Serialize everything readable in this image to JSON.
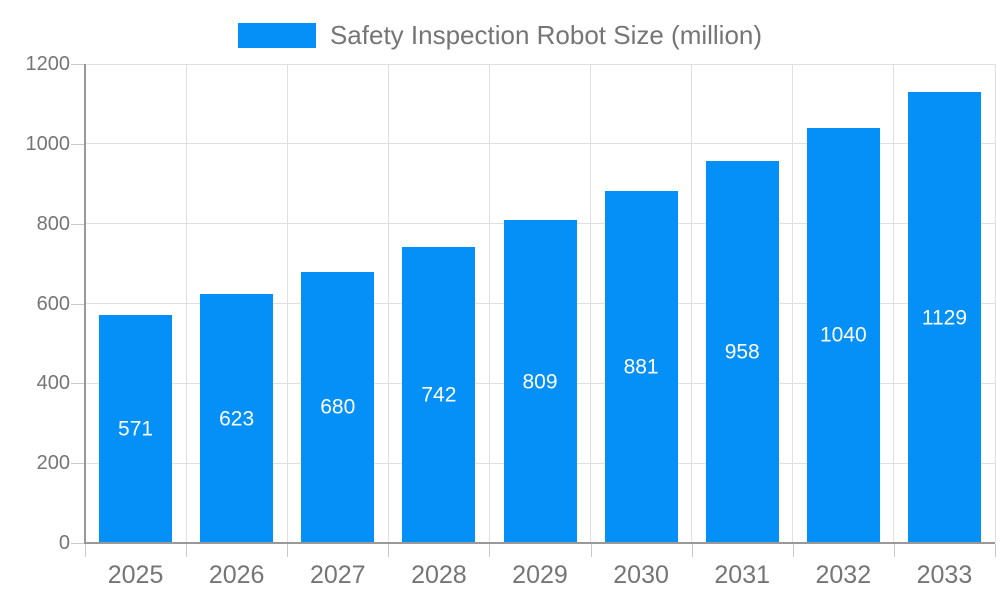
{
  "legend": {
    "label": "Safety Inspection Robot Size (million)"
  },
  "chart_data": {
    "type": "bar",
    "title": "Safety Inspection Robot Size (million)",
    "categories": [
      "2025",
      "2026",
      "2027",
      "2028",
      "2029",
      "2030",
      "2031",
      "2032",
      "2033"
    ],
    "values": [
      571,
      623,
      680,
      742,
      809,
      881,
      958,
      1040,
      1129
    ],
    "series_name": "Safety Inspection Robot Size (million)",
    "xlabel": "",
    "ylabel": "",
    "ylim": [
      0,
      1200
    ],
    "y_ticks": [
      0,
      200,
      400,
      600,
      800,
      1000,
      1200
    ],
    "grid": true,
    "legend_position": "top",
    "bar_labels_inside": true
  },
  "colors": {
    "bar": "#0590f8",
    "grid": "#e0e0e0",
    "axis": "#999999",
    "tick": "#c9c9c9",
    "axis_text": "#757575",
    "value_text": "#ffffff",
    "background": "#ffffff"
  }
}
